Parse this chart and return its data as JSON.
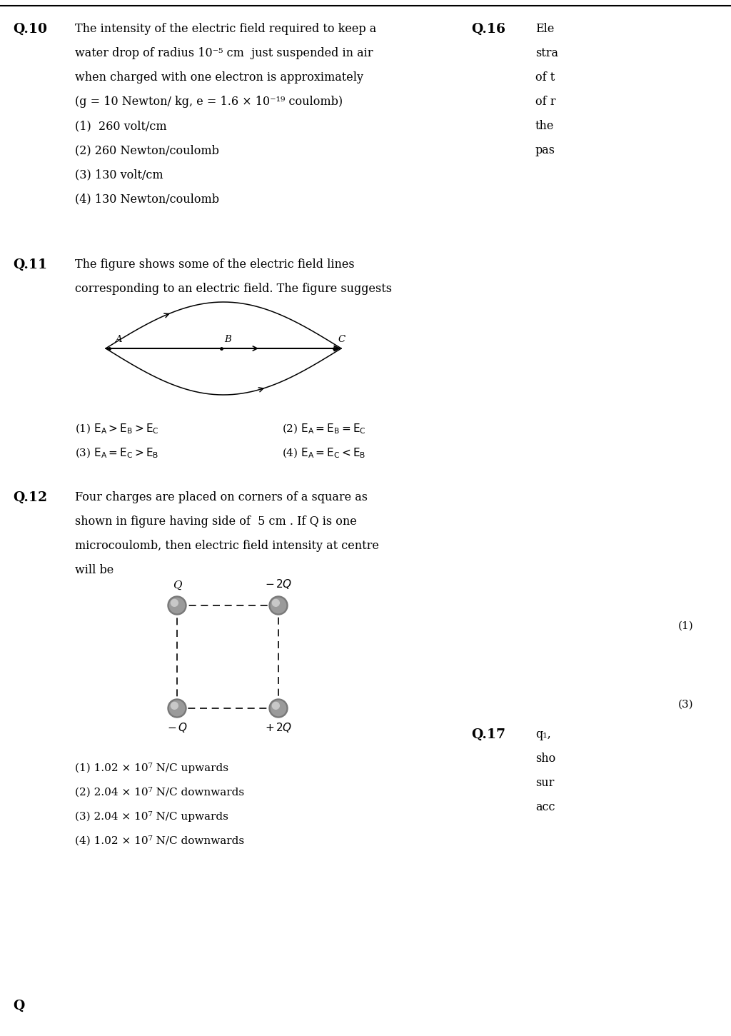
{
  "bg_color": "#ffffff",
  "q10_label": "Q.10",
  "q10_text": [
    "The intensity of the electric field required to keep a",
    "water drop of radius 10⁻⁵ cm  just suspended in air",
    "when charged with one electron is approximately",
    "(g = 10 Newton/ kg, e = 1.6 × 10⁻¹⁹ coulomb)",
    "(1)  260 volt/cm",
    "(2) 260 Newton/coulomb",
    "(3) 130 volt/cm",
    "(4) 130 Newton/coulomb"
  ],
  "q16_label": "Q.16",
  "q16_text": [
    "Ele",
    "stra",
    "of t",
    "of r",
    "the",
    "pas"
  ],
  "q11_label": "Q.11",
  "q11_text": [
    "The figure shows some of the electric field lines",
    "corresponding to an electric field. The figure suggests"
  ],
  "q11_opts_left": [
    "(1) E_A > E_B > E_C",
    "(3) E_A = E_C > E_B"
  ],
  "q11_opts_right": [
    "(2) E_A = E_B = E_C",
    "(4) E_A = E_C < E_B"
  ],
  "q12_label": "Q.12",
  "q12_text": [
    "Four charges are placed on corners of a square as",
    "shown in figure having side of  5 cm . If Q is one",
    "microcoulomb, then electric field intensity at centre",
    "will be"
  ],
  "q12_options": [
    "(1) 1.02 × 10⁷ N/C upwards",
    "(2) 2.04 × 10⁷ N/C downwards",
    "(3) 2.04 × 10⁷ N/C upwards",
    "(4) 1.02 × 10⁷ N/C downwards"
  ],
  "q17_label": "Q.17",
  "q17_text": [
    "q₁,",
    "sho",
    "sur",
    "acc"
  ],
  "right_1_label": "(1)",
  "right_3_label": "(3)"
}
